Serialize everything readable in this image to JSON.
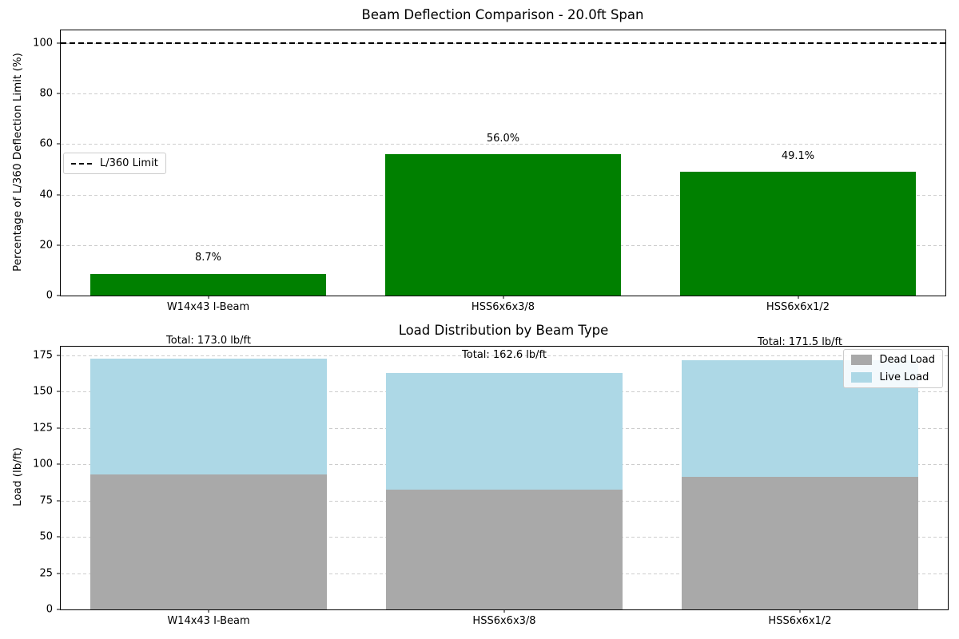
{
  "chart_data": [
    {
      "type": "bar",
      "title": "Beam Deflection Comparison - 20.0ft Span",
      "ylabel": "Percentage of L/360 Deflection Limit (%)",
      "xlabel": "",
      "categories": [
        "W14x43 I-Beam",
        "HSS6x6x3/8",
        "HSS6x6x1/2"
      ],
      "values": [
        8.7,
        56.0,
        49.1
      ],
      "bar_labels": [
        "8.7%",
        "56.0%",
        "49.1%"
      ],
      "bar_color": "#008000",
      "ylim": [
        0,
        105
      ],
      "yticks": [
        0,
        20,
        40,
        60,
        80,
        100
      ],
      "grid": true,
      "legend_position": "upper-left",
      "reference_line": {
        "y": 100,
        "label": "L/360 Limit",
        "color": "#000000",
        "style": "dashed"
      }
    },
    {
      "type": "bar",
      "stacked": true,
      "title": "Load Distribution by Beam Type",
      "ylabel": "Load (lb/ft)",
      "xlabel": "",
      "categories": [
        "W14x43 I-Beam",
        "HSS6x6x3/8",
        "HSS6x6x1/2"
      ],
      "series": [
        {
          "name": "Dead Load",
          "color": "#a9a9a9",
          "values": [
            93.0,
            82.6,
            91.5
          ]
        },
        {
          "name": "Live Load",
          "color": "#add8e6",
          "values": [
            80.0,
            80.0,
            80.0
          ]
        }
      ],
      "totals": [
        173.0,
        162.6,
        171.5
      ],
      "total_labels": [
        "Total: 173.0 lb/ft",
        "Total: 162.6 lb/ft",
        "Total: 171.5 lb/ft"
      ],
      "ylim": [
        0,
        181
      ],
      "yticks": [
        0,
        25,
        50,
        75,
        100,
        125,
        150,
        175
      ],
      "grid": true,
      "legend_position": "upper-right"
    }
  ]
}
